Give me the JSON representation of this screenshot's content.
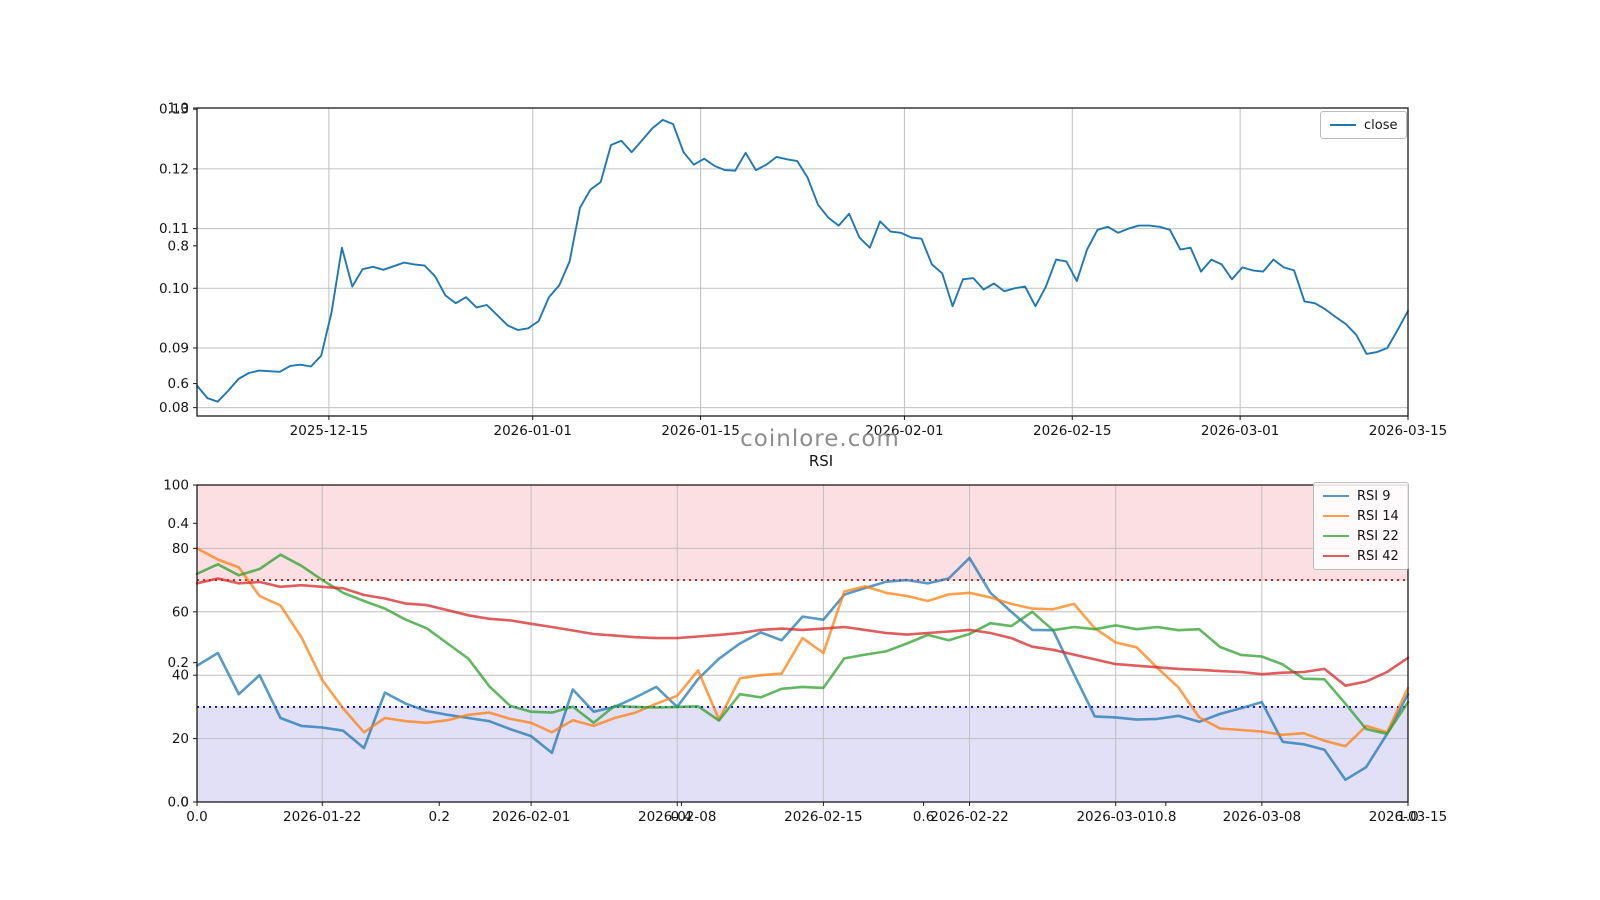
{
  "watermark": "coinlore.com",
  "colors": {
    "close_line": "#1f77b4",
    "rsi9": "#1f77b4",
    "rsi14": "#ff7f0e",
    "rsi22": "#2ca02c",
    "rsi42": "#d62728",
    "overbought_band": "#fbdfe3",
    "oversold_band": "#e1e0f7",
    "overbought_line": "#ff0000",
    "oversold_line": "#0000ff",
    "grid": "#c0c0c0",
    "spine": "#1a1a1a",
    "watermark_color": "#8d8d8d"
  },
  "chart_data": [
    {
      "type": "line",
      "title": "",
      "x_start": "2025-12-04",
      "x_end": "2026-03-15",
      "x_ticks": [
        "2025-12-15",
        "2026-01-01",
        "2026-01-15",
        "2026-02-01",
        "2026-02-15",
        "2026-03-01",
        "2026-03-15"
      ],
      "ylim": [
        0.0786,
        0.1302
      ],
      "y_ticks": [
        0.08,
        0.09,
        0.1,
        0.11,
        0.12,
        0.13
      ],
      "y_tick_labels": [
        "0.08",
        "0.09",
        "0.10",
        "0.11",
        "0.12",
        "0.13"
      ],
      "y2": {
        "lim": [
          0.553,
          1.0
        ],
        "ticks": [
          0.6,
          0.8,
          1.0
        ],
        "labels": [
          "0.6",
          "0.8",
          "1.0"
        ]
      },
      "grid": true,
      "legend_position": "upper right",
      "series": [
        {
          "name": "close",
          "color": "#1f77b4",
          "alpha": 1,
          "width": 1.9,
          "values": [
            0.0837,
            0.0816,
            0.081,
            0.0828,
            0.0848,
            0.0858,
            0.0862,
            0.0861,
            0.086,
            0.087,
            0.0872,
            0.0869,
            0.0887,
            0.096,
            0.1068,
            0.1003,
            0.1032,
            0.1036,
            0.1031,
            0.1037,
            0.1043,
            0.104,
            0.1038,
            0.102,
            0.0988,
            0.0975,
            0.0985,
            0.0968,
            0.0972,
            0.0955,
            0.0938,
            0.093,
            0.0933,
            0.0945,
            0.0985,
            0.1005,
            0.1045,
            0.1135,
            0.1165,
            0.1178,
            0.124,
            0.1247,
            0.1228,
            0.1248,
            0.1268,
            0.1282,
            0.1275,
            0.1228,
            0.1207,
            0.1217,
            0.1205,
            0.1198,
            0.1197,
            0.1227,
            0.1198,
            0.1207,
            0.122,
            0.1216,
            0.1213,
            0.1185,
            0.114,
            0.1118,
            0.1105,
            0.1125,
            0.1085,
            0.1068,
            0.1112,
            0.1095,
            0.1093,
            0.1085,
            0.1083,
            0.104,
            0.1025,
            0.097,
            0.1015,
            0.1017,
            0.0998,
            0.1008,
            0.0995,
            0.1,
            0.1003,
            0.097,
            0.1002,
            0.1048,
            0.1045,
            0.1012,
            0.1065,
            0.1098,
            0.1103,
            0.1093,
            0.11,
            0.1105,
            0.1105,
            0.1103,
            0.1098,
            0.1065,
            0.1068,
            0.1028,
            0.1048,
            0.104,
            0.1015,
            0.1035,
            0.103,
            0.1028,
            0.1048,
            0.1035,
            0.103,
            0.0978,
            0.0975,
            0.0965,
            0.0952,
            0.094,
            0.0922,
            0.089,
            0.0893,
            0.09,
            0.093,
            0.0962
          ]
        }
      ]
    },
    {
      "type": "line",
      "title": "RSI",
      "x_start": "2026-01-16",
      "x_end": "2026-03-15",
      "x_ticks": [
        "2026-01-22",
        "2026-02-01",
        "2026-02-08",
        "2026-02-15",
        "2026-02-22",
        "2026-03-01",
        "2026-03-08",
        "2026-03-15"
      ],
      "x2": {
        "lim": [
          0,
          1
        ],
        "ticks": [
          0,
          0.2,
          0.4,
          0.6,
          0.8,
          1.0
        ],
        "labels": [
          "0.0",
          "0.2",
          "0.4",
          "0.6",
          "0.8",
          "1.0"
        ]
      },
      "ylim": [
        0,
        100
      ],
      "y_ticks": [
        0,
        20,
        40,
        60,
        80,
        100
      ],
      "y_tick_labels": [
        "0",
        "20",
        "40",
        "60",
        "80",
        "100"
      ],
      "y2": {
        "lim": [
          0,
          0.455
        ],
        "ticks": [
          0,
          0.2,
          0.4
        ],
        "labels": [
          "0.0",
          "0.2",
          "0.4"
        ]
      },
      "grid": true,
      "legend_position": "upper right",
      "bands": [
        {
          "from": 70,
          "to": 100,
          "color": "#fbdfe3",
          "meaning": "overbought"
        },
        {
          "from": 0,
          "to": 30,
          "color": "#e1e0f7",
          "meaning": "oversold"
        }
      ],
      "hlines": [
        {
          "y": 70,
          "color": "#ff0000",
          "style": "dotted"
        },
        {
          "y": 30,
          "color": "#0000ff",
          "style": "dotted"
        }
      ],
      "series": [
        {
          "name": "RSI 9",
          "color": "#1f77b4",
          "alpha": 0.75,
          "width": 2.6,
          "values": [
            43,
            47,
            34,
            40,
            26.5,
            24,
            23.5,
            22.5,
            17,
            34.5,
            31,
            28.7,
            27.5,
            26.5,
            25.5,
            23,
            20.8,
            15.5,
            35.5,
            28.5,
            30,
            33,
            36.3,
            30,
            38.8,
            45.2,
            50,
            53.5,
            51,
            58.5,
            57.5,
            65.4,
            67.5,
            69.5,
            70,
            69,
            70.5,
            77,
            66,
            60,
            54.3,
            54.2,
            40.4,
            27,
            26.7,
            26,
            26.2,
            27.2,
            25.3,
            27.8,
            29.6,
            31.5,
            19,
            18.2,
            16.5,
            7,
            11,
            21.5,
            34
          ]
        },
        {
          "name": "RSI 14",
          "color": "#ff7f0e",
          "alpha": 0.75,
          "width": 2.6,
          "values": [
            80,
            76.5,
            74,
            65,
            62,
            52,
            38.5,
            29.5,
            22,
            26.5,
            25.5,
            25,
            25.8,
            27.5,
            28.2,
            26.2,
            25,
            22,
            25.8,
            24,
            26.5,
            28.2,
            31,
            33.5,
            41.5,
            26,
            39,
            40,
            40.5,
            51.7,
            47,
            66.4,
            68,
            66,
            65,
            63.4,
            65.5,
            66,
            64.5,
            62.5,
            61,
            60.8,
            62.5,
            54.8,
            50.3,
            48.8,
            42.3,
            36.2,
            26.7,
            23.2,
            22.7,
            22.2,
            21.2,
            21.7,
            19.3,
            17.6,
            24,
            22,
            36
          ]
        },
        {
          "name": "RSI 22",
          "color": "#2ca02c",
          "alpha": 0.75,
          "width": 2.6,
          "values": [
            72,
            75,
            71.5,
            73.5,
            78,
            74.5,
            70,
            66,
            63.4,
            61,
            57.5,
            54.8,
            50,
            45.2,
            36.5,
            30.3,
            28.5,
            28.2,
            30.1,
            25,
            30.3,
            30,
            29.8,
            30,
            30.2,
            25.7,
            34,
            33,
            35.7,
            36.3,
            36,
            45.3,
            46.5,
            47.5,
            50,
            52.7,
            51,
            53,
            56.4,
            55.5,
            60,
            54.2,
            55.2,
            54.5,
            55.7,
            54.5,
            55.2,
            54.2,
            54.5,
            48.9,
            46.4,
            45.9,
            43.4,
            38.9,
            38.7,
            31,
            23,
            21.5,
            31.5
          ]
        },
        {
          "name": "RSI 42",
          "color": "#d62728",
          "alpha": 0.75,
          "width": 2.6,
          "values": [
            69,
            70.5,
            69,
            69.4,
            67.9,
            68.4,
            67.9,
            67.4,
            65.3,
            64.2,
            62.6,
            62.1,
            60.5,
            58.9,
            57.8,
            57.3,
            56.2,
            55.2,
            54.1,
            53,
            52.5,
            52,
            51.7,
            51.7,
            52.2,
            52.7,
            53.3,
            54.3,
            54.7,
            54.3,
            54.7,
            55.2,
            54.3,
            53.3,
            52.8,
            53.3,
            53.8,
            54.3,
            53.3,
            51.7,
            49,
            48,
            46.5,
            45,
            43.5,
            43,
            42.5,
            42,
            41.7,
            41.3,
            41,
            40.3,
            40.8,
            41,
            42,
            36.7,
            38,
            41,
            45.5
          ]
        }
      ]
    }
  ]
}
